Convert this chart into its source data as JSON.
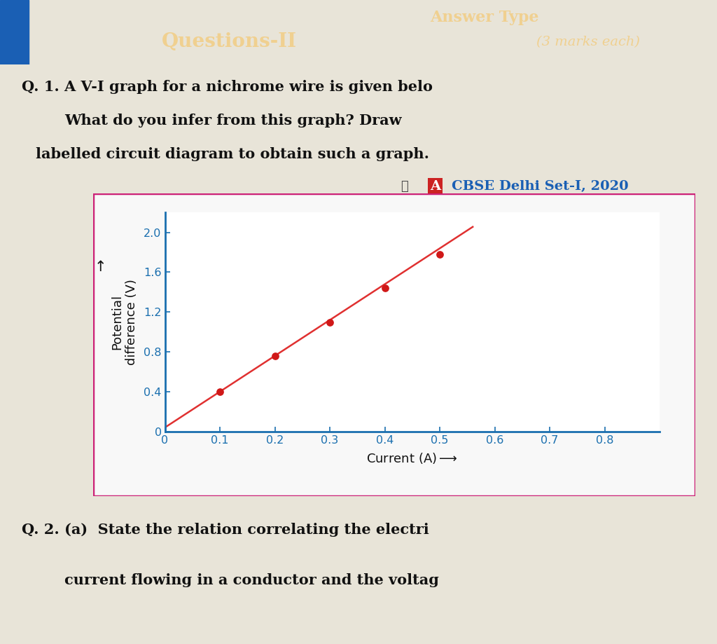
{
  "page_bg_color": "#e8e4d8",
  "header_bg_color": "#b03010",
  "header_text": "Questions-II",
  "header_subtext": "(3 marks each)",
  "header_top_text": "Answer Type",
  "q1_line1": "Q. 1. A V-I graph for a nichrome wire is given belo",
  "q1_line2": "What do you infer from this graph? Draw",
  "q1_line3": "labelled circuit diagram to obtain such a graph.",
  "ref_text": "A CBSE Delhi Set-I, 2020",
  "q2_line1": "Q. 2. (a)  State the relation correlating the electri",
  "q2_line2": "current flowing in a conductor and the voltag",
  "x_data": [
    0.1,
    0.2,
    0.3,
    0.4,
    0.5
  ],
  "y_data": [
    0.4,
    0.76,
    1.1,
    1.44,
    1.78
  ],
  "x_line_start": 0.0,
  "x_line_end": 0.56,
  "line_color": "#e03030",
  "dot_color": "#d01818",
  "axis_color": "#1a6faf",
  "graph_border_color": "#cc2277",
  "graph_bg_color": "#ffffff",
  "xlabel": "Current (A)",
  "ylabel_line1": "Potential",
  "ylabel_line2": "difference (V)",
  "xlim": [
    0.0,
    0.9
  ],
  "ylim": [
    0.0,
    2.2
  ],
  "xticks": [
    0,
    0.1,
    0.2,
    0.3,
    0.4,
    0.5,
    0.6,
    0.7,
    0.8
  ],
  "yticks": [
    0,
    0.4,
    0.8,
    1.2,
    1.6,
    2.0
  ],
  "font_color": "#111111",
  "blue_left_bar_color": "#1a5fb4",
  "slope": 3.6,
  "intercept": 0.04
}
